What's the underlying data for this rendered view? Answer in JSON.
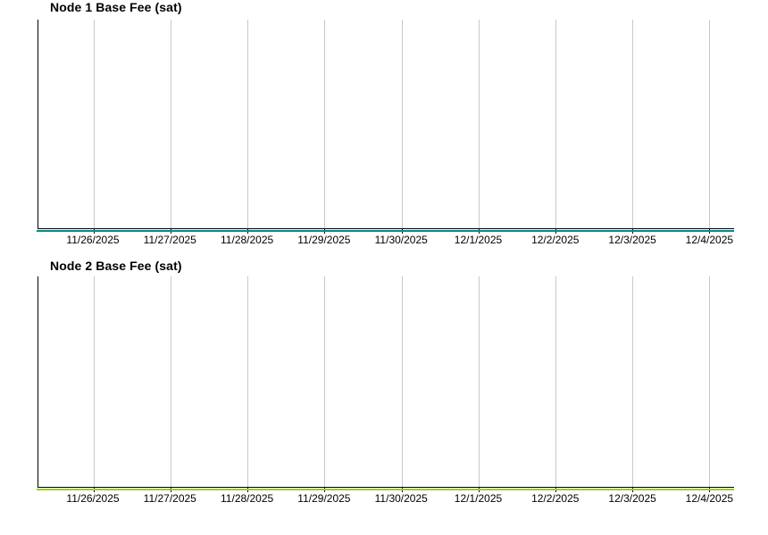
{
  "chart_data": [
    {
      "type": "line",
      "title": "Node 1 Base Fee (sat)",
      "x": [
        "11/26/2025",
        "11/27/2025",
        "11/28/2025",
        "11/29/2025",
        "11/30/2025",
        "12/1/2025",
        "12/2/2025",
        "12/3/2025",
        "12/4/2025"
      ],
      "series": [
        {
          "name": "Node 1 Base Fee (sat)",
          "values": [
            0,
            0,
            0,
            0,
            0,
            0,
            0,
            0,
            0
          ]
        }
      ],
      "xlabel": "",
      "ylabel": "",
      "line_color": "#008B8B",
      "gridline_color": "#C9C9C9",
      "axis_color": "#000000",
      "grid": "vertical-only",
      "legend": "none",
      "y_tick_labels": "none",
      "shape": "flat line along bottom axis"
    },
    {
      "type": "line",
      "title": "Node 2 Base Fee (sat)",
      "x": [
        "11/26/2025",
        "11/27/2025",
        "11/28/2025",
        "11/29/2025",
        "11/30/2025",
        "12/1/2025",
        "12/2/2025",
        "12/3/2025",
        "12/4/2025"
      ],
      "series": [
        {
          "name": "Node 2 Base Fee (sat)",
          "values": [
            0,
            0,
            0,
            0,
            0,
            0,
            0,
            0,
            0
          ]
        }
      ],
      "xlabel": "",
      "ylabel": "",
      "line_color": "#9ACD32",
      "gridline_color": "#C9C9C9",
      "axis_color": "#000000",
      "grid": "vertical-only",
      "legend": "none",
      "y_tick_labels": "none",
      "shape": "flat line along bottom axis"
    }
  ]
}
